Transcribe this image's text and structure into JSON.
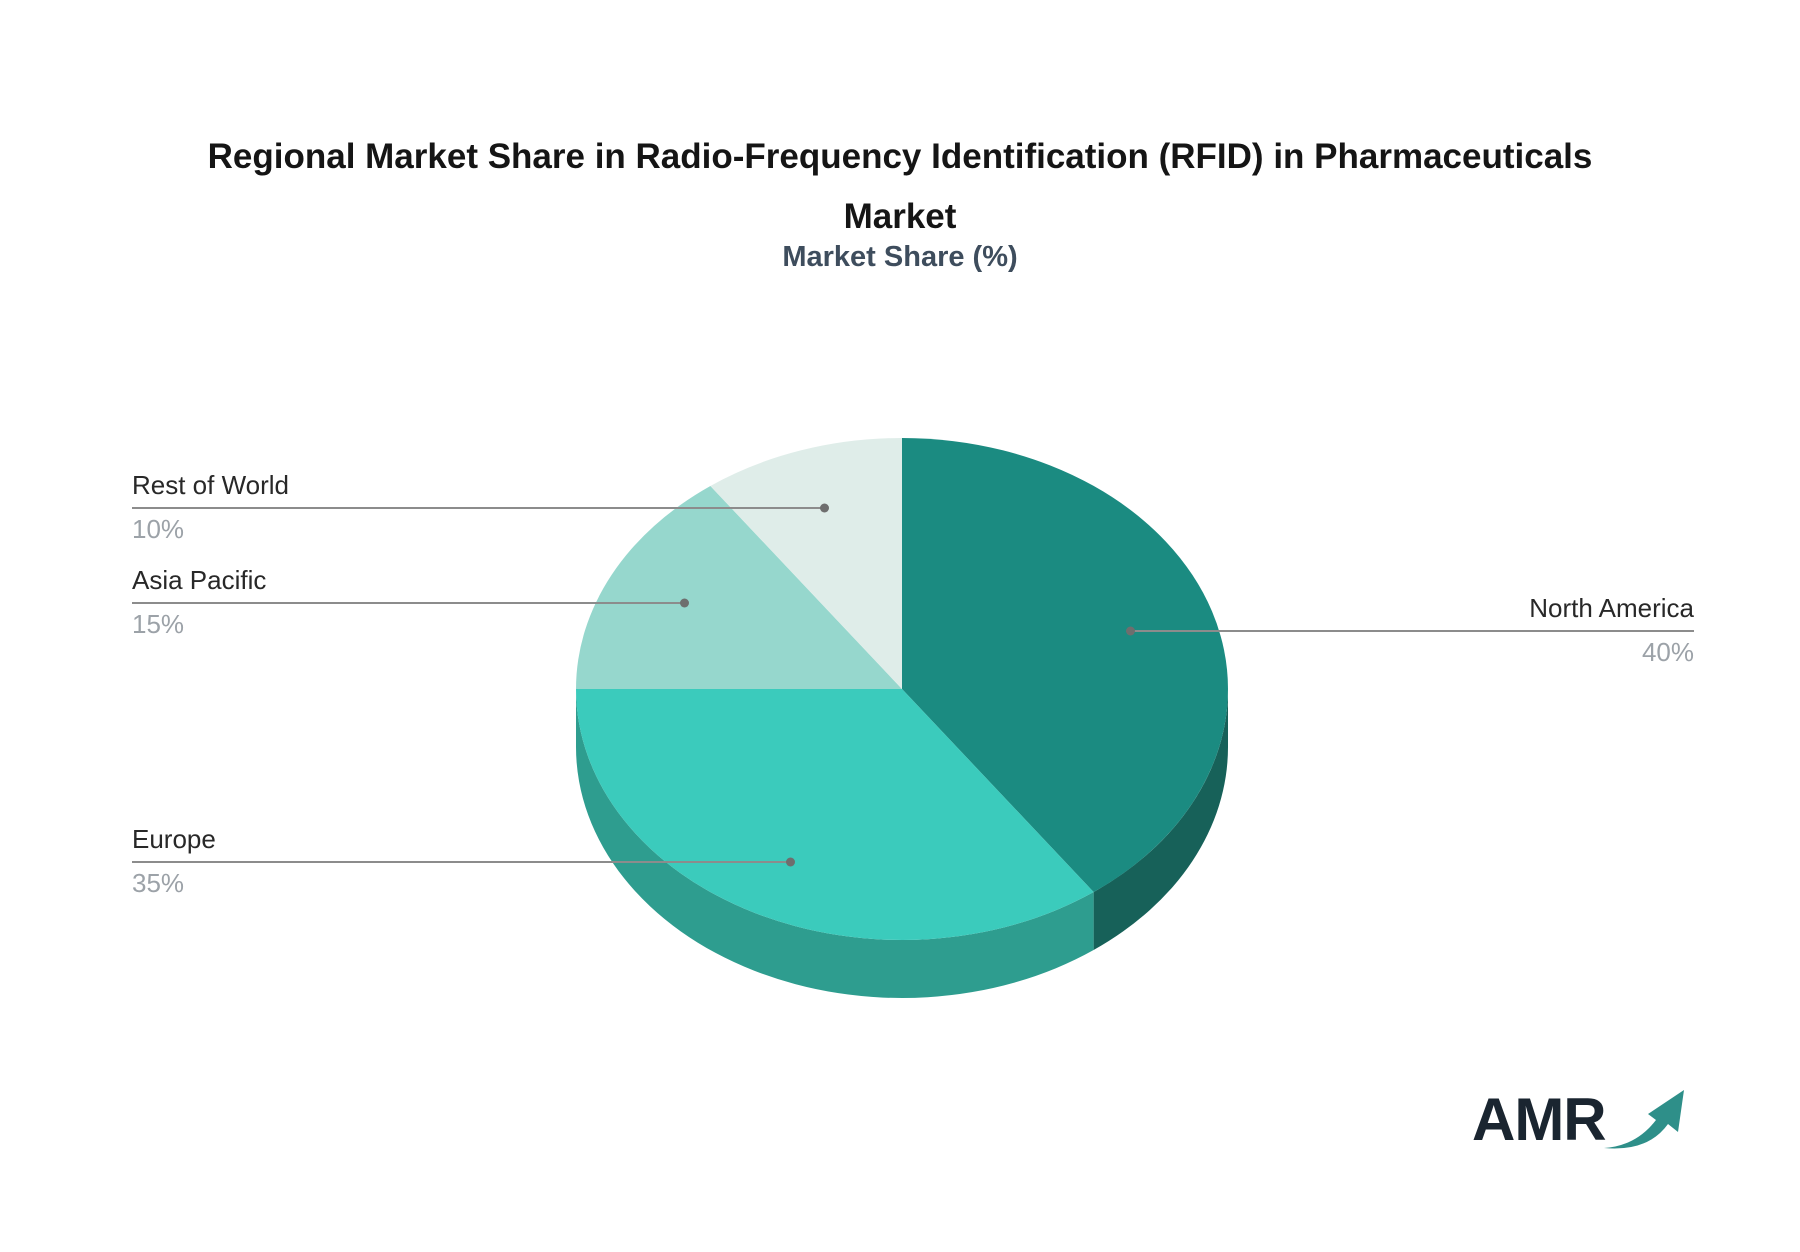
{
  "title": {
    "line1": "Regional Market Share in Radio-Frequency Identification (RFID) in Pharmaceuticals",
    "line2": "Market"
  },
  "subtitle": "Market Share (%)",
  "chart_data": {
    "type": "pie",
    "style": "3d",
    "title": "Regional Market Share in Radio-Frequency Identification (RFID) in Pharmaceuticals Market",
    "subtitle": "Market Share (%)",
    "unit": "%",
    "start_angle_deg": 0,
    "direction": "clockwise",
    "legend_position": "callout-labels",
    "slices": [
      {
        "label": "North America",
        "value": 40,
        "value_text": "40%",
        "color": "#1B8B81",
        "side_color": "#176159"
      },
      {
        "label": "Europe",
        "value": 35,
        "value_text": "35%",
        "color": "#3BCBBC",
        "side_color": "#2E9D8F"
      },
      {
        "label": "Asia Pacific",
        "value": 15,
        "value_text": "15%",
        "color": "#96D7CD",
        "side_color": "#6FB5AB"
      },
      {
        "label": "Rest of World",
        "value": 10,
        "value_text": "10%",
        "color": "#DFEDE9",
        "side_color": "#B8CCC7"
      }
    ]
  },
  "logo": {
    "text": "AMR"
  },
  "colors": {
    "leader_line": "#8C8C8C",
    "leader_dot": "#6E6E6E",
    "label_text": "#282828",
    "percent_text": "#9CA2A8",
    "title_text": "#151515",
    "subtitle_text": "#3E4D5D",
    "logo_text": "#1A2530",
    "logo_arrow": "#2E8F89"
  }
}
